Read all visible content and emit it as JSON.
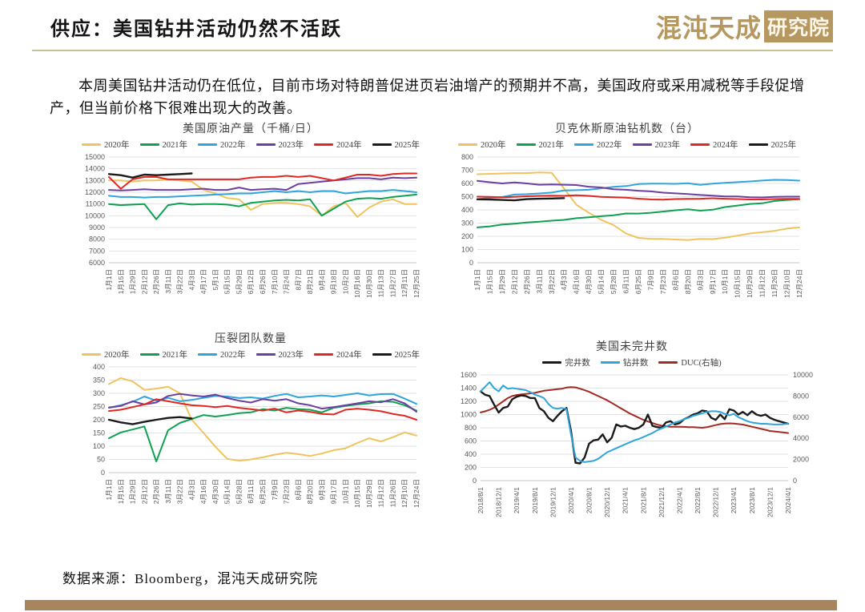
{
  "header": {
    "title": "供应：美国钻井活动仍然不活跃",
    "logo_text": "混沌天成",
    "logo_seal": "研究院"
  },
  "body_text": "本周美国钻井活动仍在低位，目前市场对特朗普促进页岩油增产的预期并不高，美国政府或采用减税等手段促增产，但当前价格下很难出现大的改善。",
  "footer": {
    "source": "数据来源：Bloomberg，混沌天成研究院"
  },
  "colors": {
    "gold_2020": "#EFC45F",
    "green_2021": "#0FA152",
    "cyan_2022": "#2EA5DB",
    "purple_2023": "#6B3FA0",
    "red_2024": "#E02722",
    "black_2025": "#1B1B1B",
    "duc_dark_red": "#A32A22",
    "logo_gold": "#B5975F",
    "divider": "#C9C196",
    "footer_bar": "#A8855C"
  },
  "chart_data": [
    {
      "id": "us-crude-production",
      "type": "line",
      "title": "美国原油产量（千桶/日）",
      "ylim": [
        6000,
        15000
      ],
      "yticks": [
        6000,
        7000,
        8000,
        9000,
        10000,
        11000,
        12000,
        13000,
        14000,
        15000
      ],
      "categories": [
        "1月1日",
        "1月15日",
        "1月29日",
        "2月12日",
        "2月26日",
        "3月11日",
        "3月22日",
        "4月3日",
        "4月17日",
        "5月1日",
        "5月15日",
        "5月29日",
        "6月12日",
        "6月26日",
        "7月10日",
        "7月24日",
        "8月7日",
        "8月21日",
        "9月4日",
        "9月18日",
        "10月2日",
        "10月16日",
        "10月30日",
        "11月13日",
        "11月27日",
        "12月11日",
        "12月25日"
      ],
      "series": [
        {
          "name": "2020年",
          "color": "#EFC45F",
          "values": [
            13000,
            13000,
            12900,
            13000,
            13000,
            13100,
            13000,
            12900,
            12200,
            11900,
            11500,
            11400,
            10500,
            11000,
            11100,
            11100,
            11000,
            10800,
            10000,
            10800,
            11100,
            9900,
            10700,
            11200,
            11400,
            11000,
            11000
          ]
        },
        {
          "name": "2021年",
          "color": "#0FA152",
          "values": [
            11000,
            10900,
            10950,
            11000,
            9700,
            10900,
            11050,
            10950,
            11000,
            11000,
            10950,
            10800,
            11100,
            11200,
            11300,
            11350,
            11300,
            11400,
            10000,
            10600,
            11200,
            11450,
            11500,
            11450,
            11600,
            11700,
            11800
          ]
        },
        {
          "name": "2022年",
          "color": "#2EA5DB",
          "values": [
            11700,
            11600,
            11600,
            11550,
            11600,
            11600,
            11650,
            11700,
            11750,
            11800,
            11850,
            11900,
            11900,
            12000,
            12100,
            12000,
            12100,
            12000,
            12100,
            12100,
            11900,
            12000,
            12100,
            12100,
            12200,
            12100,
            12000
          ]
        },
        {
          "name": "2023年",
          "color": "#6B3FA0",
          "values": [
            12200,
            12150,
            12200,
            12250,
            12200,
            12200,
            12200,
            12250,
            12300,
            12200,
            12200,
            12400,
            12200,
            12250,
            12300,
            12200,
            12700,
            12800,
            12900,
            13000,
            13100,
            13200,
            13200,
            13100,
            13250,
            13200,
            13250
          ]
        },
        {
          "name": "2024年",
          "color": "#E02722",
          "values": [
            13300,
            12300,
            13100,
            13300,
            13300,
            13100,
            13100,
            13100,
            13100,
            13100,
            13100,
            13100,
            13250,
            13300,
            13300,
            13400,
            13300,
            13400,
            13200,
            13000,
            13250,
            13500,
            13500,
            13400,
            13550,
            13600,
            13600
          ]
        },
        {
          "name": "2025年",
          "color": "#1B1B1B",
          "values": [
            13550,
            13450,
            13250,
            13500,
            13450,
            13500,
            13550,
            13600,
            null,
            null,
            null,
            null,
            null,
            null,
            null,
            null,
            null,
            null,
            null,
            null,
            null,
            null,
            null,
            null,
            null,
            null,
            null
          ]
        }
      ]
    },
    {
      "id": "baker-hughes-rig-count",
      "type": "line",
      "title": "贝克休斯原油钻机数（台）",
      "ylim": [
        0,
        800
      ],
      "yticks": [
        0,
        100,
        200,
        300,
        400,
        500,
        600,
        700,
        800
      ],
      "categories": [
        "1月1日",
        "1月15日",
        "1月29日",
        "2月12日",
        "2月26日",
        "3月11日",
        "3月22日",
        "4月3日",
        "4月16日",
        "4月30日",
        "5月14日",
        "5月28日",
        "6月11日",
        "6月25日",
        "7月9日",
        "7月23日",
        "8月6日",
        "8月20日",
        "9月3日",
        "9月17日",
        "10月1日",
        "10月15日",
        "10月29日",
        "11月12日",
        "11月26日",
        "12月10日",
        "12月24日"
      ],
      "series": [
        {
          "name": "2020年",
          "color": "#EFC45F",
          "values": [
            670,
            673,
            675,
            678,
            678,
            683,
            680,
            562,
            438,
            378,
            325,
            284,
            222,
            188,
            181,
            180,
            176,
            172,
            180,
            179,
            189,
            205,
            221,
            231,
            241,
            258,
            267
          ]
        },
        {
          "name": "2021年",
          "color": "#0FA152",
          "values": [
            267,
            275,
            289,
            295,
            305,
            310,
            318,
            324,
            337,
            344,
            352,
            359,
            373,
            372,
            378,
            387,
            397,
            405,
            394,
            401,
            421,
            433,
            445,
            450,
            467,
            475,
            480
          ]
        },
        {
          "name": "2022年",
          "color": "#2EA5DB",
          "values": [
            481,
            491,
            497,
            516,
            519,
            524,
            531,
            547,
            549,
            552,
            563,
            574,
            580,
            595,
            598,
            599,
            597,
            601,
            589,
            599,
            604,
            610,
            615,
            622,
            627,
            626,
            621
          ]
        },
        {
          "name": "2023年",
          "color": "#6B3FA0",
          "values": [
            620,
            609,
            600,
            607,
            600,
            590,
            592,
            590,
            588,
            575,
            570,
            556,
            552,
            545,
            540,
            530,
            525,
            520,
            513,
            507,
            502,
            501,
            496,
            494,
            498,
            500,
            500
          ]
        },
        {
          "name": "2024年",
          "color": "#E02722",
          "values": [
            500,
            499,
            495,
            499,
            503,
            506,
            508,
            506,
            511,
            506,
            499,
            496,
            492,
            485,
            479,
            477,
            482,
            483,
            484,
            488,
            484,
            482,
            479,
            479,
            482,
            483,
            483
          ]
        },
        {
          "name": "2025年",
          "color": "#1B1B1B",
          "values": [
            480,
            478,
            475,
            472,
            481,
            484,
            486,
            489,
            null,
            null,
            null,
            null,
            null,
            null,
            null,
            null,
            null,
            null,
            null,
            null,
            null,
            null,
            null,
            null,
            null,
            null,
            null
          ]
        }
      ]
    },
    {
      "id": "frac-crew-count",
      "type": "line",
      "title": "压裂团队数量",
      "ylim": [
        0,
        400
      ],
      "yticks": [
        0,
        50,
        100,
        150,
        200,
        250,
        300,
        350,
        400
      ],
      "categories": [
        "1月1日",
        "1月15日",
        "1月29日",
        "2月12日",
        "2月26日",
        "3月11日",
        "3月22日",
        "4月3日",
        "4月16日",
        "4月30日",
        "5月14日",
        "5月28日",
        "6月11日",
        "6月25日",
        "7月9日",
        "7月23日",
        "8月6日",
        "8月20日",
        "9月3日",
        "9月17日",
        "10月1日",
        "10月15日",
        "10月29日",
        "11月12日",
        "11月26日",
        "12月10日",
        "12月24日"
      ],
      "series": [
        {
          "name": "2020年",
          "color": "#EFC45F",
          "values": [
            335,
            358,
            345,
            313,
            318,
            325,
            300,
            200,
            150,
            98,
            52,
            45,
            50,
            58,
            68,
            75,
            70,
            63,
            72,
            85,
            92,
            112,
            130,
            118,
            134,
            152,
            140
          ]
        },
        {
          "name": "2021年",
          "color": "#0FA152",
          "values": [
            130,
            152,
            163,
            175,
            42,
            160,
            188,
            203,
            218,
            212,
            218,
            225,
            228,
            240,
            235,
            245,
            240,
            238,
            228,
            245,
            252,
            258,
            262,
            270,
            268,
            255,
            235
          ]
        },
        {
          "name": "2022年",
          "color": "#2EA5DB",
          "values": [
            245,
            255,
            268,
            288,
            272,
            283,
            270,
            275,
            283,
            290,
            288,
            282,
            285,
            280,
            290,
            298,
            285,
            288,
            292,
            288,
            294,
            300,
            292,
            297,
            298,
            280,
            260
          ]
        },
        {
          "name": "2023年",
          "color": "#6B3FA0",
          "values": [
            246,
            252,
            270,
            258,
            265,
            290,
            298,
            292,
            288,
            295,
            282,
            272,
            265,
            278,
            272,
            278,
            262,
            255,
            242,
            248,
            255,
            262,
            270,
            266,
            278,
            262,
            230
          ]
        },
        {
          "name": "2024年",
          "color": "#E02722",
          "values": [
            233,
            238,
            248,
            258,
            278,
            270,
            262,
            255,
            252,
            248,
            252,
            245,
            240,
            235,
            242,
            228,
            235,
            230,
            222,
            220,
            238,
            242,
            238,
            232,
            222,
            215,
            200
          ]
        },
        {
          "name": "2025年",
          "color": "#1B1B1B",
          "values": [
            200,
            190,
            183,
            192,
            200,
            207,
            210,
            205,
            null,
            null,
            null,
            null,
            null,
            null,
            null,
            null,
            null,
            null,
            null,
            null,
            null,
            null,
            null,
            null,
            null,
            null,
            null
          ]
        }
      ]
    },
    {
      "id": "us-duc-wells",
      "type": "line",
      "title": "美国未完井数",
      "ylim": [
        0,
        1600
      ],
      "yticks": [
        0,
        200,
        400,
        600,
        800,
        1000,
        1200,
        1400,
        1600
      ],
      "right_ylim": [
        0,
        10000
      ],
      "right_yticks": [
        0,
        2000,
        4000,
        6000,
        8000,
        10000
      ],
      "n_points": 69,
      "tick_step": 4,
      "tick_labels": [
        "2018/8/1",
        "2018/12/1",
        "2019/4/1",
        "2019/8/1",
        "2019/12/1",
        "2020/4/1",
        "2020/8/1",
        "2020/12/1",
        "2021/4/1",
        "2021/8/1",
        "2021/12/1",
        "2022/4/1",
        "2022/8/1",
        "2022/12/1",
        "2023/4/1",
        "2023/8/1",
        "2023/12/1",
        "2024/4/1"
      ],
      "series": [
        {
          "name": "完井数",
          "color": "#1B1B1B",
          "values": [
            1350,
            1300,
            1280,
            1150,
            1030,
            1100,
            1120,
            1230,
            1270,
            1290,
            1280,
            1250,
            1250,
            1100,
            1050,
            950,
            900,
            980,
            1050,
            1100,
            750,
            270,
            260,
            350,
            560,
            610,
            620,
            700,
            580,
            650,
            850,
            820,
            830,
            800,
            780,
            800,
            850,
            1000,
            830,
            810,
            800,
            880,
            900,
            850,
            870,
            930,
            960,
            1000,
            1020,
            1060,
            1050,
            950,
            920,
            1000,
            930,
            1080,
            1060,
            1000,
            1040,
            990,
            1050,
            1000,
            980,
            1000,
            950,
            920,
            900,
            880,
            860
          ]
        },
        {
          "name": "钻井数",
          "color": "#2EA5DB",
          "values": [
            1350,
            1420,
            1490,
            1400,
            1350,
            1440,
            1390,
            1400,
            1390,
            1380,
            1370,
            1340,
            1300,
            1280,
            1250,
            1160,
            1100,
            1090,
            1100,
            1080,
            700,
            350,
            300,
            280,
            290,
            300,
            330,
            380,
            430,
            460,
            490,
            520,
            550,
            580,
            610,
            630,
            660,
            690,
            720,
            760,
            790,
            820,
            850,
            880,
            900,
            930,
            950,
            980,
            1000,
            1020,
            1040,
            1050,
            1050,
            1040,
            1010,
            990,
            1010,
            960,
            930,
            900,
            880,
            870,
            860,
            860,
            855,
            850,
            850,
            855,
            860
          ]
        },
        {
          "name": "DUC(右轴)",
          "color": "#A32A22",
          "axis": "right",
          "values": [
            6450,
            6550,
            6700,
            6900,
            7200,
            7500,
            7800,
            8000,
            8100,
            8150,
            8200,
            8250,
            8300,
            8400,
            8500,
            8550,
            8600,
            8650,
            8700,
            8800,
            8850,
            8820,
            8700,
            8550,
            8400,
            8200,
            8000,
            7800,
            7600,
            7350,
            7100,
            6850,
            6600,
            6350,
            6150,
            5950,
            5750,
            5600,
            5450,
            5300,
            5200,
            5150,
            5100,
            5100,
            5100,
            5080,
            5050,
            5050,
            5030,
            5000,
            5050,
            5150,
            5250,
            5350,
            5400,
            5420,
            5400,
            5350,
            5300,
            5200,
            5100,
            5000,
            4900,
            4800,
            4700,
            4650,
            4600,
            4550,
            4500
          ]
        }
      ]
    }
  ]
}
